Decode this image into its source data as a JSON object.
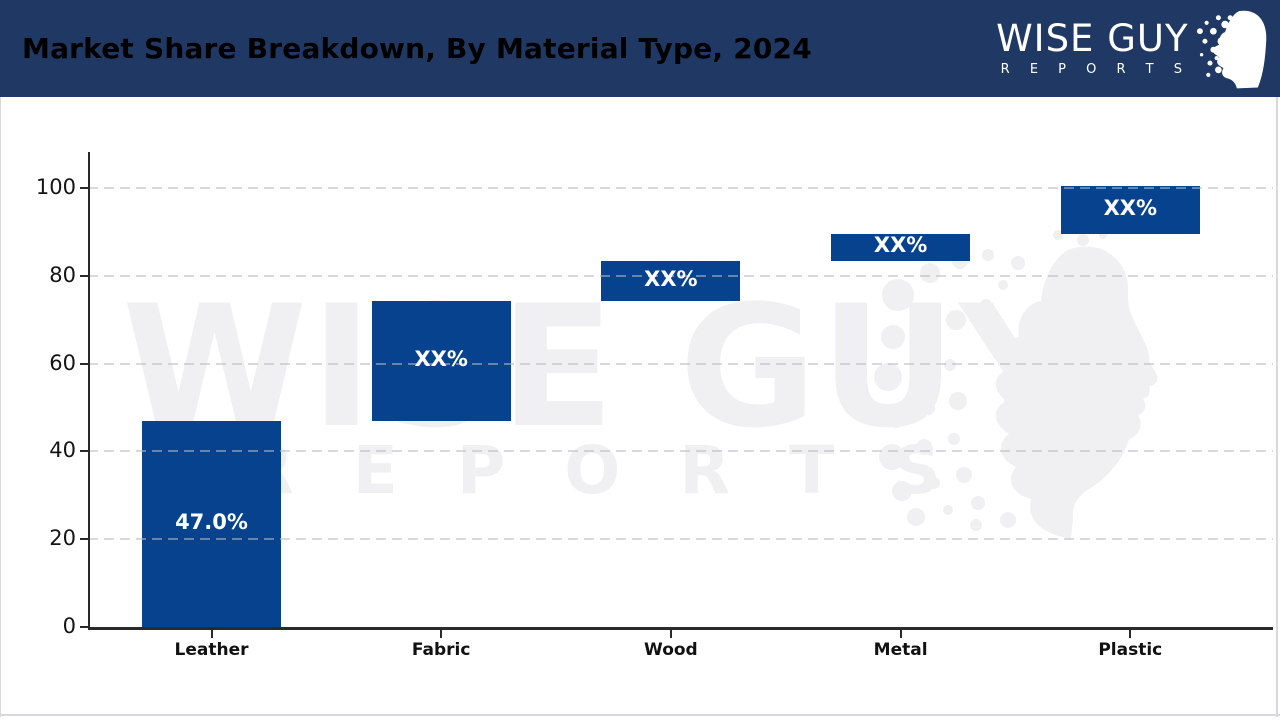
{
  "header": {
    "title": "Market Share Breakdown, By Material Type, 2024",
    "logo": {
      "line1": "WISE GUY",
      "line2": "R E P O R T S"
    }
  },
  "watermark": {
    "line1": "WISE GUY",
    "line2": "R E P O R T S"
  },
  "colors": {
    "header_bg": "#1F3864",
    "bar": "#07428F",
    "axis": "#2a2a2a",
    "grid": "#bababa",
    "watermark": "#f0f0f2",
    "bar_label_text": "#ffffff",
    "tick_text": "#141414"
  },
  "chart_data": {
    "type": "bar",
    "subtype": "waterfall",
    "title": "Market Share Breakdown, By Material Type, 2024",
    "categories": [
      "Leather",
      "Fabric",
      "Wood",
      "Metal",
      "Plastic"
    ],
    "series": [
      {
        "name": "Market Share %",
        "segments": [
          {
            "category": "Leather",
            "start": 0,
            "end": 47,
            "label": "47.0%"
          },
          {
            "category": "Fabric",
            "start": 47,
            "end": 74.3,
            "label": "XX%"
          },
          {
            "category": "Wood",
            "start": 74.3,
            "end": 83.4,
            "label": "XX%"
          },
          {
            "category": "Metal",
            "start": 83.4,
            "end": 89.6,
            "label": "XX%"
          },
          {
            "category": "Plastic",
            "start": 89.6,
            "end": 100.5,
            "label": "XX%"
          }
        ]
      }
    ],
    "xlabel": "",
    "ylabel": "",
    "ylim": [
      0,
      100
    ],
    "yticks": [
      0,
      20,
      40,
      60,
      80,
      100
    ],
    "grid": "horizontal-dashed",
    "legend": false,
    "bar_color": "#07428F"
  }
}
